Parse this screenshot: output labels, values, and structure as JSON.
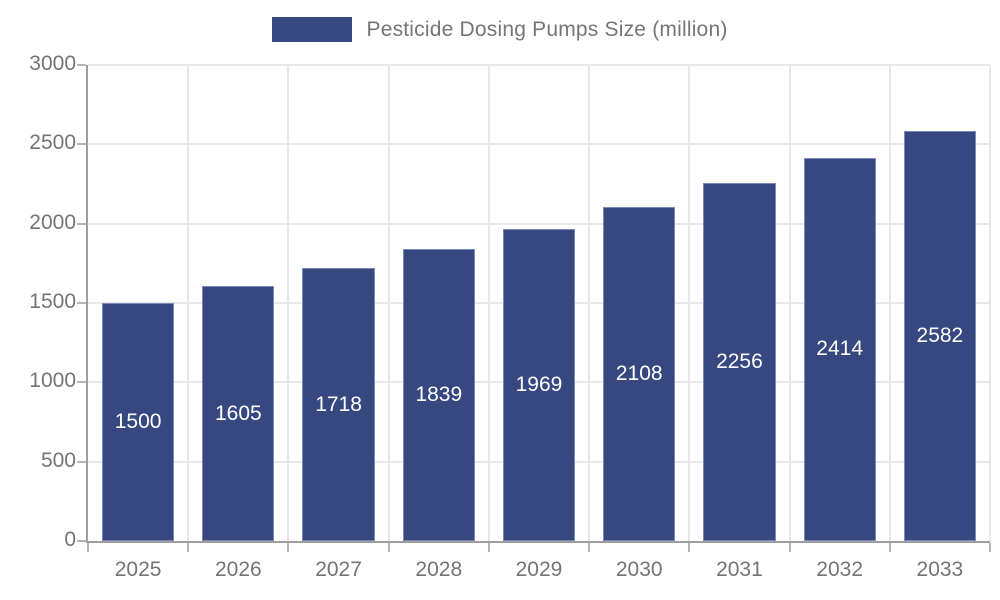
{
  "chart_data": {
    "type": "bar",
    "title": "",
    "legend": "Pesticide Dosing Pumps Size (million)",
    "series_name": "Pesticide Dosing Pumps Size (million)",
    "categories": [
      "2025",
      "2026",
      "2027",
      "2028",
      "2029",
      "2030",
      "2031",
      "2032",
      "2033"
    ],
    "values": [
      1500,
      1605,
      1718,
      1839,
      1969,
      2108,
      2256,
      2414,
      2582
    ],
    "bar_labels": [
      "1500",
      "1605",
      "1718",
      "1839",
      "1969",
      "2108",
      "2256",
      "2414",
      "2582"
    ],
    "xlabel": "",
    "ylabel": "",
    "ylim": [
      0,
      3000
    ],
    "yticks": [
      0,
      500,
      1000,
      1500,
      2000,
      2500,
      3000
    ],
    "ytick_labels": [
      "0",
      "500",
      "1000",
      "1500",
      "2000",
      "2500",
      "3000"
    ],
    "grid": true,
    "legend_position": "top-center",
    "colors": {
      "bar": "#374880",
      "bar_border": "#7d89b6",
      "bar_label": "#ffffff",
      "axis_text": "#747474",
      "legend_text": "#757575",
      "grid": "#e8e8e8",
      "spine": "#9e9e9e"
    }
  }
}
